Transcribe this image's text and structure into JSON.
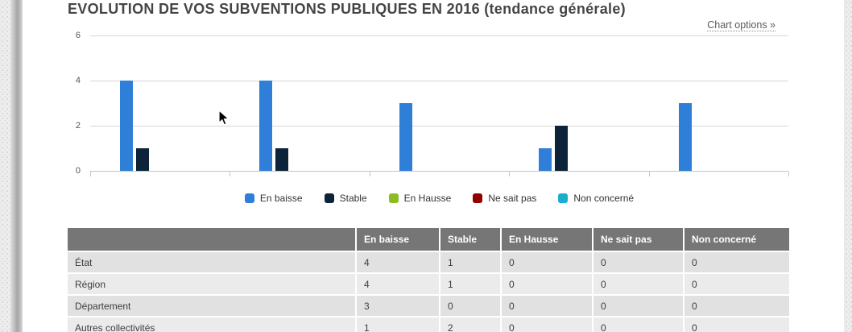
{
  "page": {
    "title": "EVOLUTION DE VOS SUBVENTIONS PUBLIQUES EN 2016 (tendance générale)",
    "chart_options_label": "Chart options »"
  },
  "chart_data": {
    "type": "bar",
    "title": "EVOLUTION DE VOS SUBVENTIONS PUBLIQUES EN 2016 (tendance générale)",
    "categories": [
      "État",
      "Région",
      "Département",
      "Autres collectivités",
      ""
    ],
    "series": [
      {
        "name": "En baisse",
        "color": "#2f7ed8",
        "values": [
          4,
          4,
          3,
          1,
          3
        ]
      },
      {
        "name": "Stable",
        "color": "#0d233a",
        "values": [
          1,
          1,
          0,
          2,
          0
        ]
      },
      {
        "name": "En Hausse",
        "color": "#8bbc21",
        "values": [
          0,
          0,
          0,
          0,
          0
        ]
      },
      {
        "name": "Ne sait pas",
        "color": "#910000",
        "values": [
          0,
          0,
          0,
          0,
          0
        ]
      },
      {
        "name": "Non concerné",
        "color": "#1aadce",
        "values": [
          0,
          0,
          0,
          0,
          0
        ]
      }
    ],
    "xlabel": "",
    "ylabel": "",
    "ylim": [
      0,
      6
    ],
    "yticks": [
      6,
      4,
      2,
      0
    ],
    "grid": true,
    "legend_position": "bottom"
  },
  "table": {
    "columns": [
      "",
      "En baisse",
      "Stable",
      "En Hausse",
      "Ne sait pas",
      "Non concerné"
    ],
    "rows": [
      {
        "label": "État",
        "values": [
          "4",
          "1",
          "0",
          "0",
          "0"
        ]
      },
      {
        "label": "Région",
        "values": [
          "4",
          "1",
          "0",
          "0",
          "0"
        ]
      },
      {
        "label": "Département",
        "values": [
          "3",
          "0",
          "0",
          "0",
          "0"
        ]
      },
      {
        "label": "Autres collectivités",
        "values": [
          "1",
          "2",
          "0",
          "0",
          "0"
        ]
      }
    ]
  },
  "colors": {
    "grid": "#d6d6d6",
    "axis": "#c3c3c3",
    "header_bg": "#767676",
    "row_odd": "#e1e1e1",
    "row_even": "#ebebeb",
    "title_text": "#454545"
  }
}
